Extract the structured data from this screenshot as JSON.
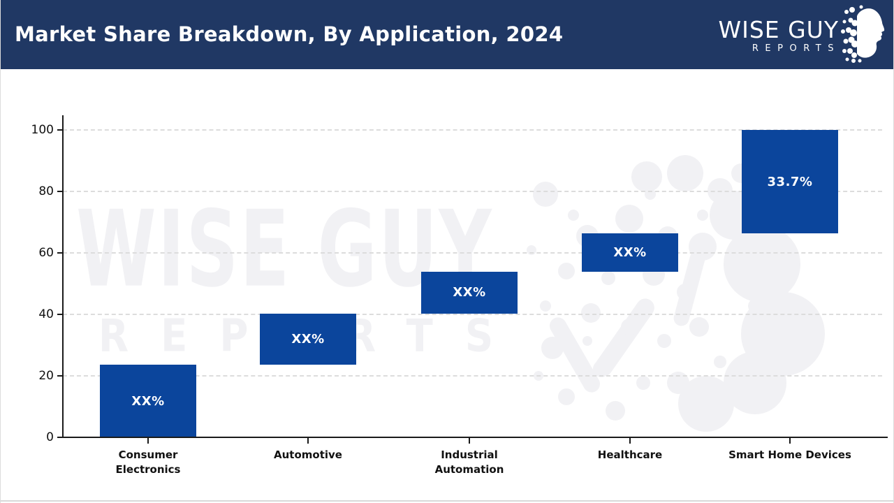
{
  "header": {
    "title": "Market Share Breakdown, By Application, 2024",
    "logo": {
      "name": "WISE GUY",
      "sub": "REPORTS"
    }
  },
  "watermark": {
    "line1": "WISE GUY",
    "line2": "REPORTS"
  },
  "colors": {
    "header_bg": "#203864",
    "bar": "#0b459c",
    "bar_label": "#ffffff",
    "axis": "#1a1a1a",
    "grid": "#dcdcdc",
    "watermark": "#f1f1f4"
  },
  "chart_data": {
    "type": "bar",
    "variant": "floating-waterfall",
    "title": "Market Share Breakdown, By Application, 2024",
    "xlabel": "",
    "ylabel": "",
    "ylim": [
      0,
      100
    ],
    "yticks": [
      0,
      20,
      40,
      60,
      80,
      100
    ],
    "grid": "horizontal-dashed",
    "legend": "none",
    "categories": [
      "Consumer Electronics",
      "Automotive",
      "Industrial Automation",
      "Healthcare",
      "Smart Home Devices"
    ],
    "category_label_lines": [
      [
        "Consumer",
        "Electronics"
      ],
      [
        "Automotive"
      ],
      [
        "Industrial",
        "Automation"
      ],
      [
        "Healthcare"
      ],
      [
        "Smart Home Devices"
      ]
    ],
    "bars": [
      {
        "category": "Consumer Electronics",
        "start": 0,
        "end": 23.6,
        "segment_value": 23.6,
        "value_label": "XX%"
      },
      {
        "category": "Automotive",
        "start": 23.6,
        "end": 40.2,
        "segment_value": 16.6,
        "value_label": "XX%"
      },
      {
        "category": "Industrial Automation",
        "start": 40.2,
        "end": 53.9,
        "segment_value": 13.7,
        "value_label": "XX%"
      },
      {
        "category": "Healthcare",
        "start": 53.9,
        "end": 66.3,
        "segment_value": 12.4,
        "value_label": "XX%"
      },
      {
        "category": "Smart Home Devices",
        "start": 66.3,
        "end": 100,
        "segment_value": 33.7,
        "value_label": "33.7%"
      }
    ]
  }
}
